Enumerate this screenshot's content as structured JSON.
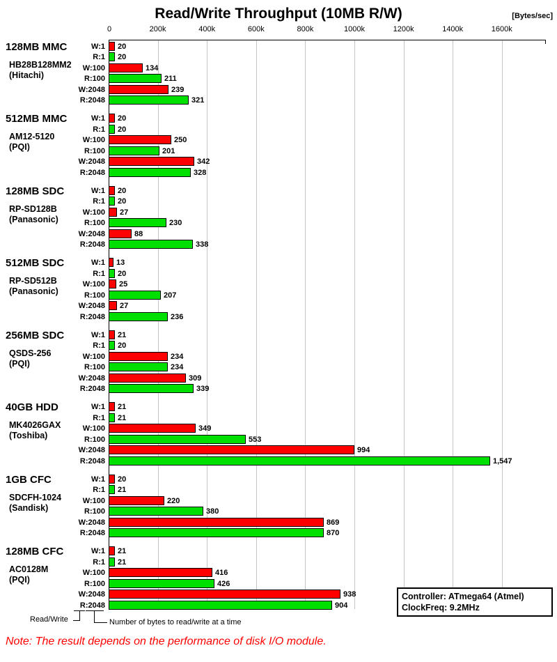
{
  "page": {
    "title": "Read/Write Throughput (10MB R/W)",
    "unit_label": "[Bytes/sec]",
    "note": "Note: The result depends on the performance of disk I/O module."
  },
  "info_box": {
    "controller": "Controller: ATmega64 (Atmel)",
    "clock": "ClockFreq: 9.2MHz"
  },
  "annotations": {
    "read_write": "Read/Write",
    "bytes_at_a_time": "Number of bytes to read/write at a time"
  },
  "colors": {
    "write_bar": "#ff0000",
    "read_bar": "#00e000",
    "grid": "#c4c4c4",
    "note_text": "#ff0000"
  },
  "chart_data": {
    "type": "bar",
    "orientation": "horizontal",
    "title": "Read/Write Throughput (10MB R/W)",
    "value_unit": "Bytes/sec",
    "value_note": "bar labels are in units of 1000 Bytes/sec (k)",
    "xlim": [
      0,
      1600
    ],
    "x_ticks": [
      "0",
      "200k",
      "400k",
      "600k",
      "800k",
      "1000k",
      "1200k",
      "1400k",
      "1600k"
    ],
    "grid": true,
    "legend_position": "none",
    "row_labels": [
      "W:1",
      "R:1",
      "W:100",
      "R:100",
      "W:2048",
      "R:2048"
    ],
    "row_colors": [
      "write",
      "read",
      "write",
      "read",
      "write",
      "read"
    ],
    "groups": [
      {
        "device": "128MB MMC",
        "model": "HB28B128MM2",
        "maker": "(Hitachi)",
        "values": [
          20,
          20,
          134,
          211,
          239,
          321
        ],
        "value_labels": [
          "20",
          "20",
          "134",
          "211",
          "239",
          "321"
        ]
      },
      {
        "device": "512MB MMC",
        "model": "AM12-5120",
        "maker": "(PQI)",
        "values": [
          20,
          20,
          250,
          201,
          342,
          328
        ],
        "value_labels": [
          "20",
          "20",
          "250",
          "201",
          "342",
          "328"
        ]
      },
      {
        "device": "128MB SDC",
        "model": "RP-SD128B",
        "maker": "(Panasonic)",
        "values": [
          20,
          20,
          27,
          230,
          88,
          338
        ],
        "value_labels": [
          "20",
          "20",
          "27",
          "230",
          "88",
          "338"
        ]
      },
      {
        "device": "512MB SDC",
        "model": "RP-SD512B",
        "maker": "(Panasonic)",
        "values": [
          13,
          20,
          25,
          207,
          27,
          236
        ],
        "value_labels": [
          "13",
          "20",
          "25",
          "207",
          "27",
          "236"
        ]
      },
      {
        "device": "256MB SDC",
        "model": "QSDS-256",
        "maker": "(PQI)",
        "values": [
          21,
          20,
          234,
          234,
          309,
          339
        ],
        "value_labels": [
          "21",
          "20",
          "234",
          "234",
          "309",
          "339"
        ]
      },
      {
        "device": "40GB HDD",
        "model": "MK4026GAX",
        "maker": "(Toshiba)",
        "values": [
          21,
          21,
          349,
          553,
          994,
          1547
        ],
        "value_labels": [
          "21",
          "21",
          "349",
          "553",
          "994",
          "1,547"
        ]
      },
      {
        "device": "1GB CFC",
        "model": "SDCFH-1024",
        "maker": "(Sandisk)",
        "values": [
          20,
          21,
          220,
          380,
          869,
          870
        ],
        "value_labels": [
          "20",
          "21",
          "220",
          "380",
          "869",
          "870"
        ]
      },
      {
        "device": "128MB CFC",
        "model": "AC0128M",
        "maker": "(PQI)",
        "values": [
          21,
          21,
          416,
          426,
          938,
          904
        ],
        "value_labels": [
          "21",
          "21",
          "416",
          "426",
          "938",
          "904"
        ]
      }
    ]
  }
}
